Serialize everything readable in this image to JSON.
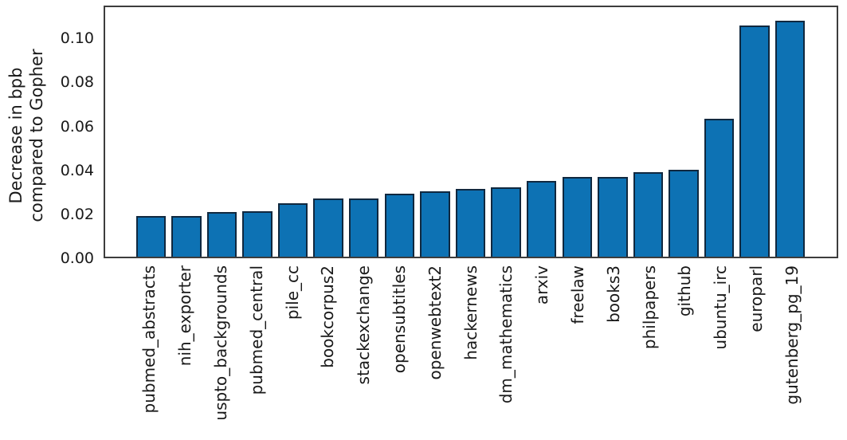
{
  "figure": {
    "background_color": "#ffffff",
    "text_color": "#191919",
    "spine_color": "#3d3d3d"
  },
  "chart_data": {
    "type": "bar",
    "title": "",
    "xlabel": "",
    "ylabel": "Decrease in bpb compared to Gopher",
    "ylabel_lines": [
      "Decrease in bpb",
      "compared to Gopher"
    ],
    "categories": [
      "pubmed_abstracts",
      "nih_exporter",
      "uspto_backgrounds",
      "pubmed_central",
      "pile_cc",
      "bookcorpus2",
      "stackexchange",
      "opensubtitles",
      "openwebtext2",
      "hackernews",
      "dm_mathematics",
      "arxiv",
      "freelaw",
      "books3",
      "philpapers",
      "github",
      "ubuntu_irc",
      "europarl",
      "gutenberg_pg_19"
    ],
    "values": [
      0.0186,
      0.0189,
      0.0205,
      0.0208,
      0.0245,
      0.0267,
      0.027,
      0.029,
      0.0301,
      0.0312,
      0.032,
      0.035,
      0.0366,
      0.0368,
      0.0389,
      0.04,
      0.0636,
      0.1066,
      0.1088
    ],
    "yticks": [
      0.0,
      0.02,
      0.04,
      0.06,
      0.08,
      0.1
    ],
    "ytick_labels": [
      "0.00",
      "0.02",
      "0.04",
      "0.06",
      "0.08",
      "0.10"
    ],
    "ylim": [
      0,
      0.115
    ],
    "grid": false,
    "legend": null,
    "bar_color": "#0d72b4",
    "bar_edge_color": "#10283f",
    "x_labels_rotation_deg": 90
  }
}
